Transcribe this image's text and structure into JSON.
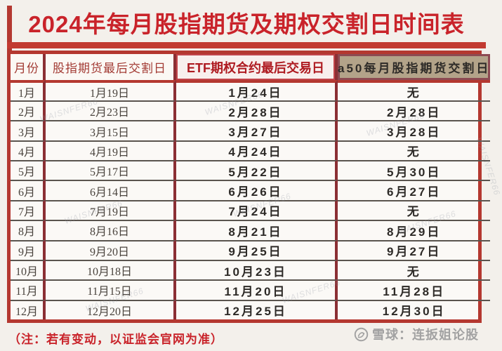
{
  "chart_data": {
    "type": "table",
    "title": "2024年每月股指期货及期权交割日时间表",
    "columns": [
      "月份",
      "股指期货最后交割日",
      "ETF期权合约最后交易日",
      "a50每月股指期货交割日"
    ],
    "rows": [
      [
        "1月",
        "1月19日",
        "1月24日",
        "无"
      ],
      [
        "2月",
        "2月23日",
        "2月28日",
        "2月28日"
      ],
      [
        "3月",
        "3月15日",
        "3月27日",
        "3月28日"
      ],
      [
        "4月",
        "4月19日",
        "4月24日",
        "无"
      ],
      [
        "5月",
        "5月17日",
        "5月22日",
        "5月30日"
      ],
      [
        "6月",
        "6月14日",
        "6月26日",
        "6月27日"
      ],
      [
        "7月",
        "7月19日",
        "7月24日",
        "无"
      ],
      [
        "8月",
        "8月16日",
        "8月21日",
        "8月29日"
      ],
      [
        "9月",
        "9月20日",
        "9月25日",
        "9月27日"
      ],
      [
        "10月",
        "10月18日",
        "10月23日",
        "无"
      ],
      [
        "11月",
        "11月15日",
        "11月20日",
        "11月28日"
      ],
      [
        "12月",
        "12月20日",
        "12月25日",
        "12月30日"
      ]
    ],
    "note": "（注：若有变动，以证监会官网为准）"
  },
  "page": {
    "brand": {
      "icon": "xueqiu-logo",
      "text": "雪球：连扳姐论股"
    },
    "watermark": "WAISNFER66",
    "colors": {
      "title_red": "#c9232a",
      "border_red": "#b43830",
      "divider_maroon": "#8b2f34",
      "row_line_gray": "#5a544e",
      "etf_header_text": "#ae1a20",
      "a50_header_bg": "#b3a389",
      "a50_header_text": "#6f1a20"
    }
  }
}
